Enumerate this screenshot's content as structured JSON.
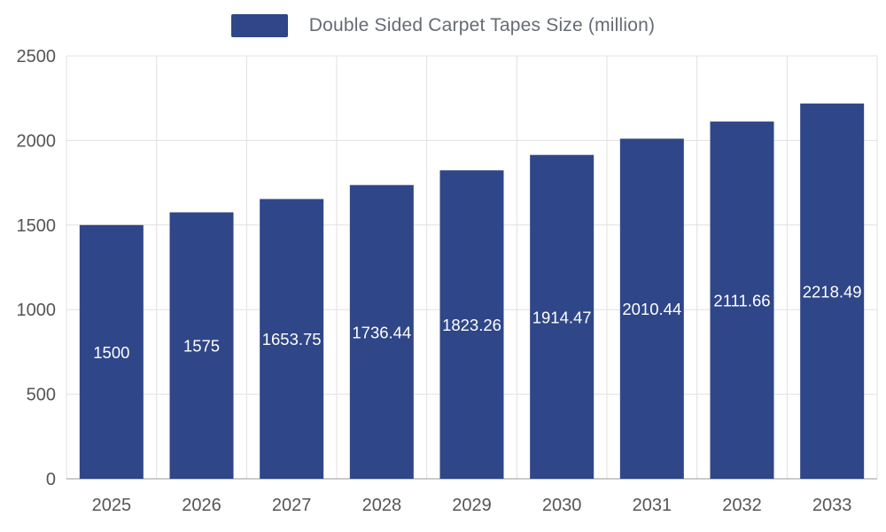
{
  "chart_data": {
    "type": "bar",
    "title": "Double Sided Carpet Tapes Size (million)",
    "categories": [
      "2025",
      "2026",
      "2027",
      "2028",
      "2029",
      "2030",
      "2031",
      "2032",
      "2033"
    ],
    "values": [
      1500,
      1575,
      1653.75,
      1736.44,
      1823.26,
      1914.47,
      2010.44,
      2111.66,
      2218.49
    ],
    "value_labels": [
      "1500",
      "1575",
      "1653.75",
      "1736.44",
      "1823.26",
      "1914.47",
      "2010.44",
      "2111.66",
      "2218.49"
    ],
    "xlabel": "",
    "ylabel": "",
    "ylim": [
      0,
      2500
    ],
    "yticks": [
      0,
      500,
      1000,
      1500,
      2000,
      2500
    ],
    "grid": true,
    "legend_position": "top",
    "bar_color": "#2F4688",
    "value_label_color": "#ffffff",
    "axis_text_color": "#555555",
    "grid_color": "#e0e0e0",
    "axis_line_color": "#999999"
  }
}
